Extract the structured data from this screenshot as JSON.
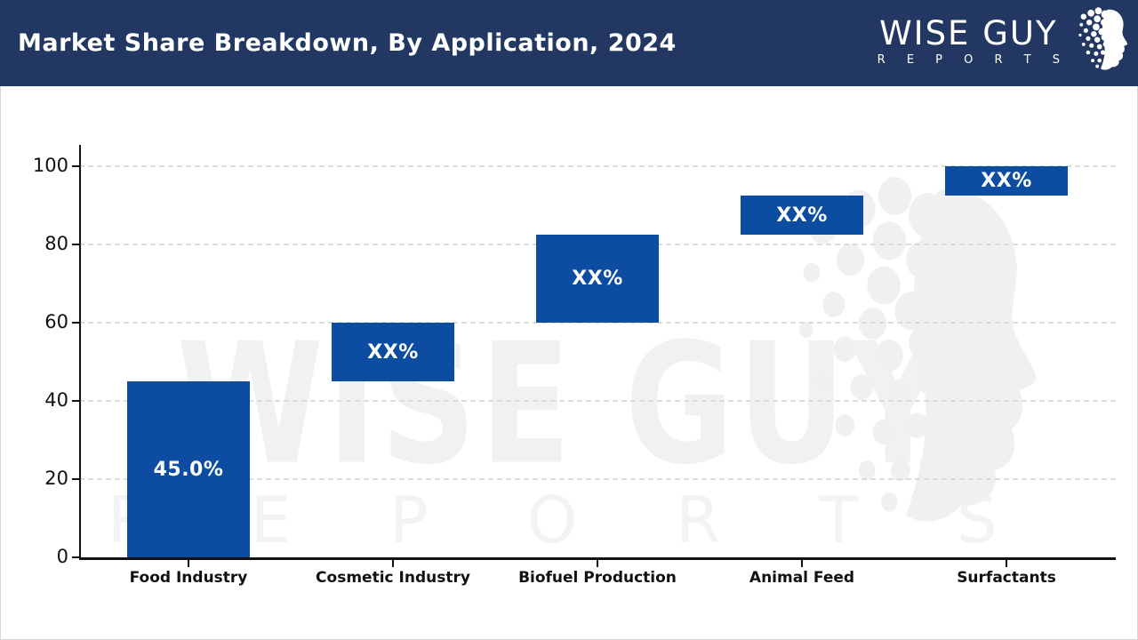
{
  "header": {
    "title": "Market Share Breakdown, By Application, 2024",
    "bg_color": "#223862",
    "logo": {
      "line1": "WISE GUY",
      "line2": "R E P O R T S"
    }
  },
  "watermark": {
    "line1": "WISE GUY",
    "line2": "R E P O R T S"
  },
  "chart_data": {
    "type": "bar",
    "subtype": "waterfall",
    "title": "Market Share Breakdown, By Application, 2024",
    "categories": [
      "Food Industry",
      "Cosmetic Industry",
      "Biofuel Production",
      "Animal Feed",
      "Surfactants"
    ],
    "values": [
      45,
      15,
      22.5,
      10,
      7.5
    ],
    "segments": [
      {
        "category": "Food Industry",
        "start": 0,
        "end": 45,
        "label": "45.0%"
      },
      {
        "category": "Cosmetic Industry",
        "start": 45,
        "end": 60,
        "label": "XX%"
      },
      {
        "category": "Biofuel Production",
        "start": 60,
        "end": 82.5,
        "label": "XX%"
      },
      {
        "category": "Animal Feed",
        "start": 82.5,
        "end": 92.5,
        "label": "XX%"
      },
      {
        "category": "Surfactants",
        "start": 92.5,
        "end": 100,
        "label": "XX%"
      }
    ],
    "y_ticks": [
      0,
      20,
      40,
      60,
      80,
      100
    ],
    "ylim": [
      0,
      100
    ],
    "xlabel": "",
    "ylabel": "",
    "grid": "horizontal-dashed",
    "legend": "none",
    "bar_color": "#0c4da2",
    "bar_label_color": "#ffffff",
    "grid_color": "#dcdcdc",
    "axis_color": "#111111"
  }
}
